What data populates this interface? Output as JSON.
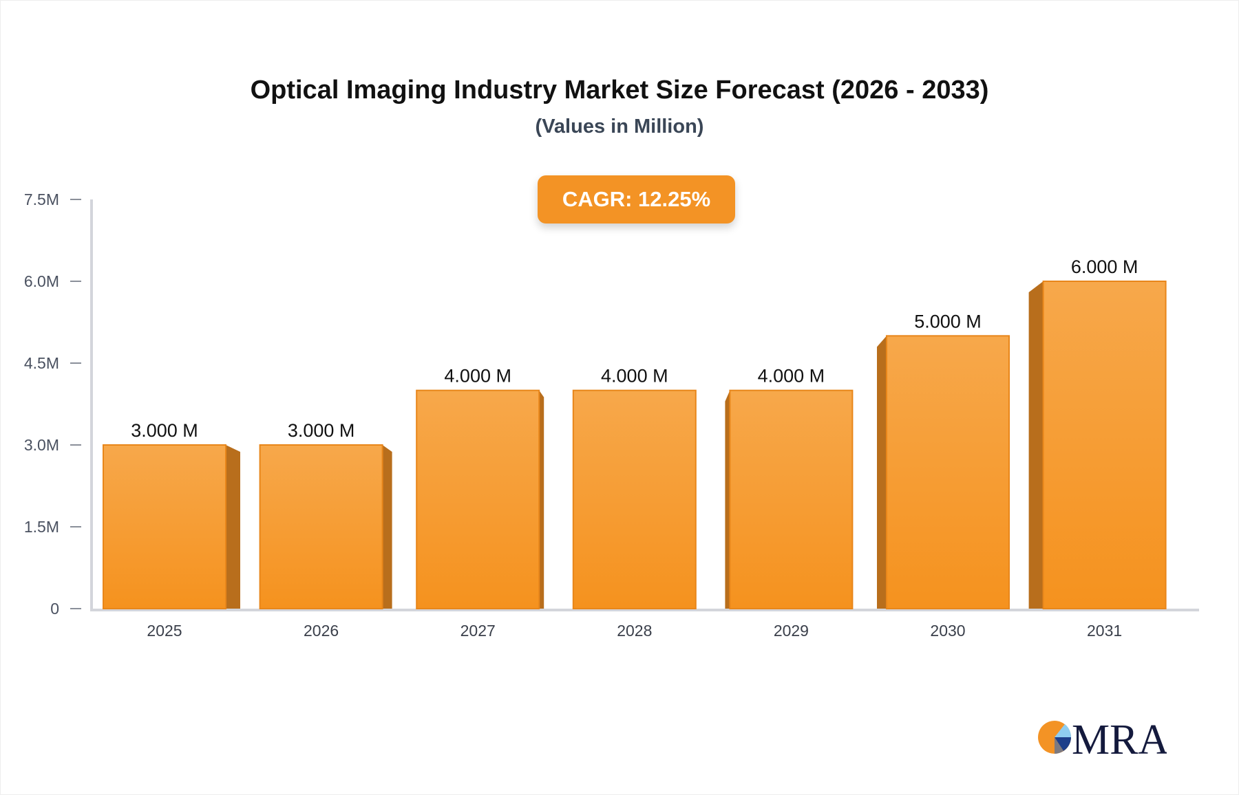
{
  "chart_data": {
    "type": "bar",
    "title": "Optical Imaging Industry Market Size Forecast (2026 - 2033)",
    "subtitle": "(Values in Million)",
    "annotation": "CAGR: 12.25%",
    "categories": [
      "2025",
      "2026",
      "2027",
      "2028",
      "2029",
      "2030",
      "2031"
    ],
    "values": [
      3.0,
      3.0,
      4.0,
      4.0,
      4.0,
      5.0,
      6.0
    ],
    "data_labels": [
      "3.000 M",
      "3.000 M",
      "4.000 M",
      "4.000 M",
      "4.000 M",
      "5.000 M",
      "6.000 M"
    ],
    "yticks": [
      0,
      1.5,
      3.0,
      4.5,
      6.0,
      7.5
    ],
    "ytick_labels": [
      "0",
      "1.5M",
      "3.0M",
      "4.5M",
      "6.0M",
      "7.5M"
    ],
    "ylim": [
      0,
      7.5
    ],
    "grid": false,
    "bar_color": "#f5a043",
    "bar_side_color": "#b86e1c"
  },
  "logo": {
    "text": "MRA"
  }
}
